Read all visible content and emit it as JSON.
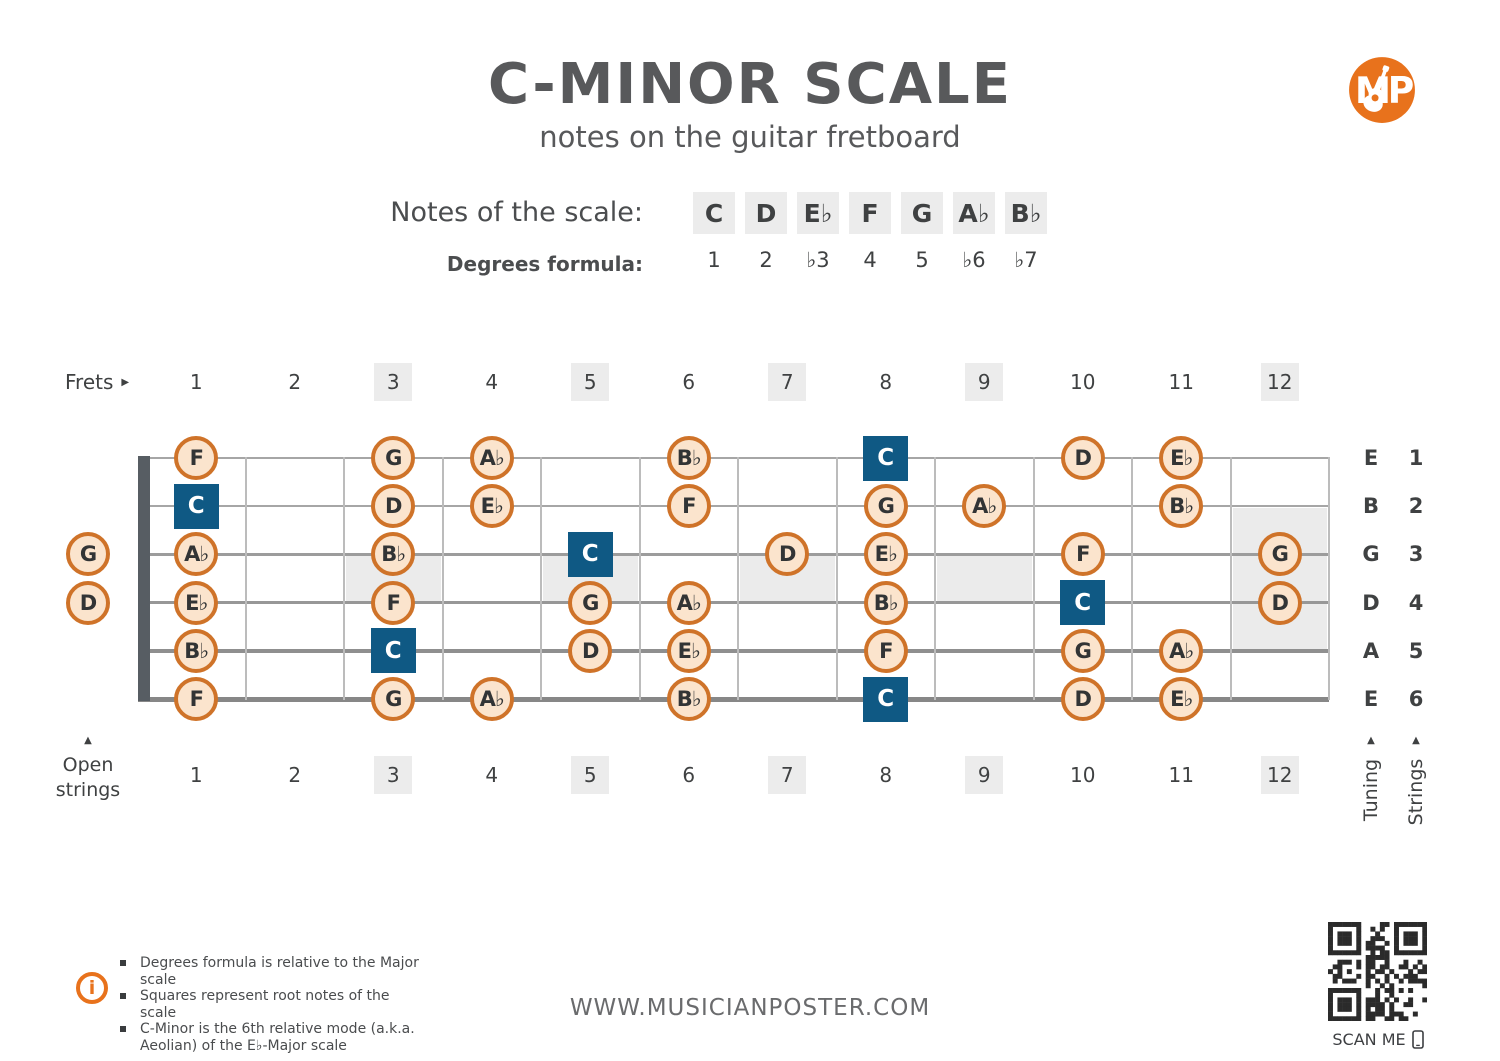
{
  "header": {
    "title": "C-MINOR SCALE",
    "subtitle": "notes on the guitar fretboard",
    "logo_text": "MP"
  },
  "scale": {
    "notes_label": "Notes of the scale:",
    "notes": [
      "C",
      "D",
      "E♭",
      "F",
      "G",
      "A♭",
      "B♭"
    ],
    "degrees_label": "Degrees formula:",
    "degrees": [
      "1",
      "2",
      "♭3",
      "4",
      "5",
      "♭6",
      "♭7"
    ]
  },
  "fretboard": {
    "frets_label": "Frets",
    "frets_arrow": "▶",
    "up_arrow": "▲",
    "fret_numbers": [
      "1",
      "2",
      "3",
      "4",
      "5",
      "6",
      "7",
      "8",
      "9",
      "10",
      "11",
      "12"
    ],
    "marker_frets": [
      3,
      5,
      7,
      9,
      12
    ],
    "open_label_line1": "Open",
    "open_label_line2": "strings",
    "tuning_label": "Tuning",
    "strings_label": "Strings",
    "strings": [
      {
        "number": "1",
        "tuning": "E",
        "open": null,
        "notes": [
          {
            "fret": 1,
            "note": "F"
          },
          {
            "fret": 3,
            "note": "G"
          },
          {
            "fret": 4,
            "note": "A♭"
          },
          {
            "fret": 6,
            "note": "B♭"
          },
          {
            "fret": 8,
            "note": "C",
            "root": true
          },
          {
            "fret": 10,
            "note": "D"
          },
          {
            "fret": 11,
            "note": "E♭"
          }
        ]
      },
      {
        "number": "2",
        "tuning": "B",
        "open": null,
        "notes": [
          {
            "fret": 1,
            "note": "C",
            "root": true
          },
          {
            "fret": 3,
            "note": "D"
          },
          {
            "fret": 4,
            "note": "E♭"
          },
          {
            "fret": 6,
            "note": "F"
          },
          {
            "fret": 8,
            "note": "G"
          },
          {
            "fret": 9,
            "note": "A♭"
          },
          {
            "fret": 11,
            "note": "B♭"
          }
        ]
      },
      {
        "number": "3",
        "tuning": "G",
        "open": "G",
        "notes": [
          {
            "fret": 1,
            "note": "A♭"
          },
          {
            "fret": 3,
            "note": "B♭"
          },
          {
            "fret": 5,
            "note": "C",
            "root": true
          },
          {
            "fret": 7,
            "note": "D"
          },
          {
            "fret": 8,
            "note": "E♭"
          },
          {
            "fret": 10,
            "note": "F"
          },
          {
            "fret": 12,
            "note": "G"
          }
        ]
      },
      {
        "number": "4",
        "tuning": "D",
        "open": "D",
        "notes": [
          {
            "fret": 1,
            "note": "E♭"
          },
          {
            "fret": 3,
            "note": "F"
          },
          {
            "fret": 5,
            "note": "G"
          },
          {
            "fret": 6,
            "note": "A♭"
          },
          {
            "fret": 8,
            "note": "B♭"
          },
          {
            "fret": 10,
            "note": "C",
            "root": true
          },
          {
            "fret": 12,
            "note": "D"
          }
        ]
      },
      {
        "number": "5",
        "tuning": "A",
        "open": null,
        "notes": [
          {
            "fret": 1,
            "note": "B♭"
          },
          {
            "fret": 3,
            "note": "C",
            "root": true
          },
          {
            "fret": 5,
            "note": "D"
          },
          {
            "fret": 6,
            "note": "E♭"
          },
          {
            "fret": 8,
            "note": "F"
          },
          {
            "fret": 10,
            "note": "G"
          },
          {
            "fret": 11,
            "note": "A♭"
          }
        ]
      },
      {
        "number": "6",
        "tuning": "E",
        "open": null,
        "notes": [
          {
            "fret": 1,
            "note": "F"
          },
          {
            "fret": 3,
            "note": "G"
          },
          {
            "fret": 4,
            "note": "A♭"
          },
          {
            "fret": 6,
            "note": "B♭"
          },
          {
            "fret": 8,
            "note": "C",
            "root": true
          },
          {
            "fret": 10,
            "note": "D"
          },
          {
            "fret": 11,
            "note": "E♭"
          }
        ]
      }
    ]
  },
  "footer": {
    "notes": [
      "Degrees formula is relative to the Major scale",
      "Squares represent root notes of the scale",
      "C-Minor is the 6th relative mode (a.k.a. Aeolian) of the E♭-Major scale"
    ],
    "info_icon": "i",
    "website": "WWW.MUSICIANPOSTER.COM",
    "scan_label": "SCAN ME"
  },
  "colors": {
    "accent_orange": "#E8721C",
    "note_fill": "#FBE4CD",
    "note_border": "#CF7329",
    "root_blue": "#0F5984",
    "title_gray": "#58595B",
    "chip_gray": "#ECECEC",
    "marker_gray": "#EBEBEB"
  }
}
